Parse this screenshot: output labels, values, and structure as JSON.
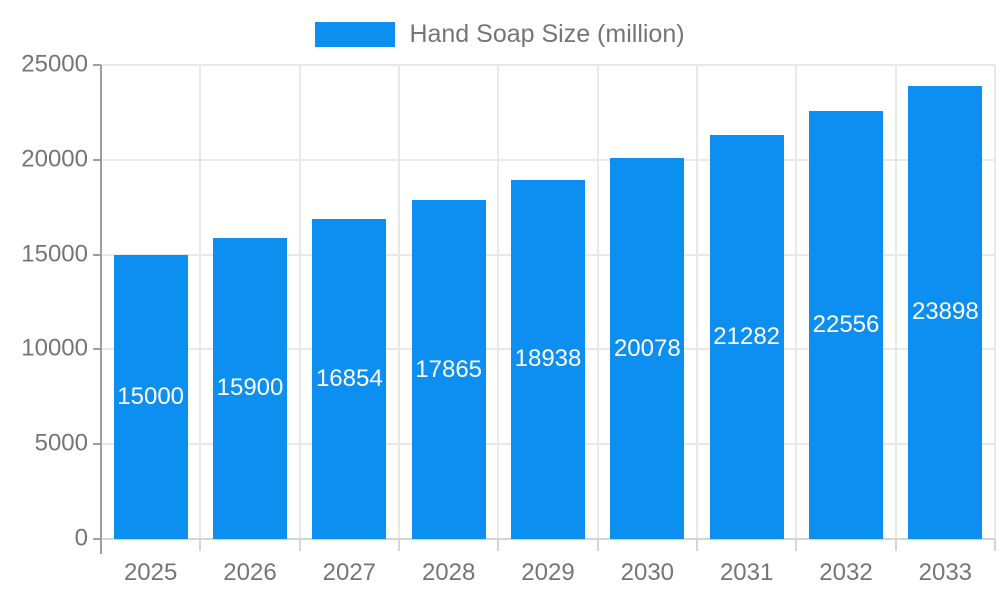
{
  "chart_data": {
    "type": "bar",
    "title": "Hand Soap Size (million)",
    "legend": "Hand Soap Size (million)",
    "legend_position": "top",
    "categories": [
      "2025",
      "2026",
      "2027",
      "2028",
      "2029",
      "2030",
      "2031",
      "2032",
      "2033"
    ],
    "values": [
      15000,
      15900,
      16854,
      17865,
      18938,
      20078,
      21282,
      22556,
      23898
    ],
    "bar_labels": [
      "15000",
      "15900",
      "16854",
      "17865",
      "18938",
      "20078",
      "21282",
      "22556",
      "23898"
    ],
    "xlabel": "",
    "ylabel": "",
    "ylim": [
      0,
      25000
    ],
    "yticks": [
      0,
      5000,
      10000,
      15000,
      20000,
      25000
    ],
    "ytick_labels": [
      "0",
      "5000",
      "10000",
      "15000",
      "20000",
      "25000"
    ],
    "grid": true,
    "colors": {
      "bar": "#0d8ff2",
      "bar_value_text": "#ffffff",
      "tick_text": "#757575",
      "grid_line": "#e8e8e8",
      "axis_line": "#9e9e9e",
      "baseline": "#d4d4d4",
      "background": "#ffffff"
    }
  }
}
